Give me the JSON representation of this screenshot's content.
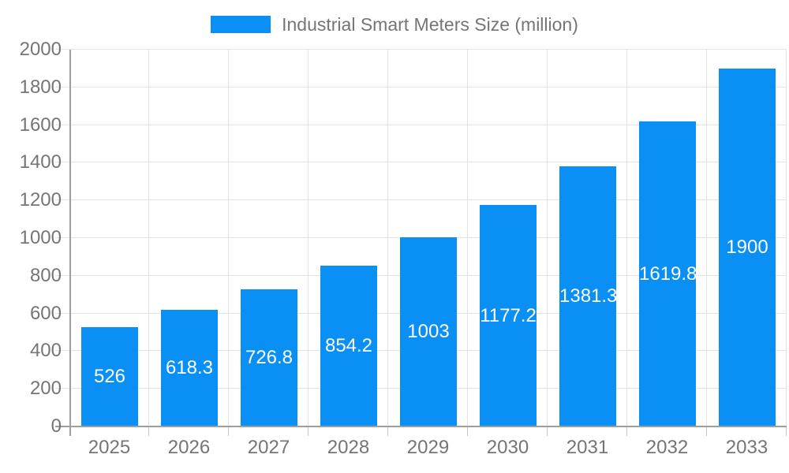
{
  "chart_data": {
    "type": "bar",
    "title": "Industrial Smart Meters Size (million)",
    "categories": [
      "2025",
      "2026",
      "2027",
      "2028",
      "2029",
      "2030",
      "2031",
      "2032",
      "2033"
    ],
    "values": [
      526,
      618.3,
      726.8,
      854.2,
      1003,
      1177.2,
      1381.3,
      1619.8,
      1900
    ],
    "value_labels": [
      "526",
      "618.3",
      "726.8",
      "854.2",
      "1003",
      "1177.2",
      "1381.3",
      "1619.8",
      "1900"
    ],
    "yticks": [
      0,
      200,
      400,
      600,
      800,
      1000,
      1200,
      1400,
      1600,
      1800,
      2000
    ],
    "ylim": [
      0,
      2000
    ],
    "xlabel": "",
    "ylabel": "",
    "grid": "on",
    "legend_position": "top-center"
  },
  "colors": {
    "bar": "#0a90f5",
    "grid": "#e3e3e3",
    "axis": "#9e9e9e",
    "tick": "#c6c6c6",
    "text": "#757575",
    "value_label": "#ffffff"
  }
}
